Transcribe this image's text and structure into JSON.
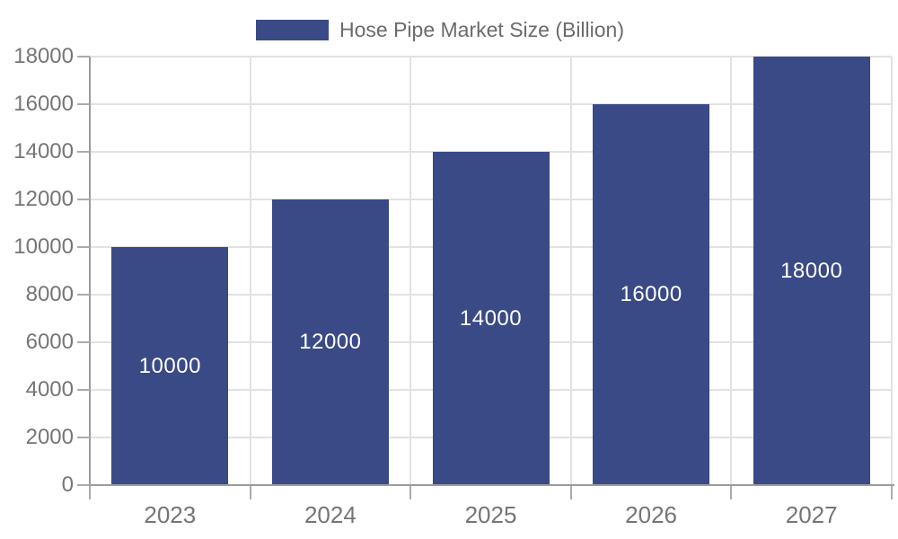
{
  "chart_data": {
    "type": "bar",
    "legend_label": "Hose Pipe Market Size (Billion)",
    "legend_position": "top",
    "categories": [
      "2023",
      "2024",
      "2025",
      "2026",
      "2027"
    ],
    "series": [
      {
        "name": "Hose Pipe Market Size (Billion)",
        "values": [
          10000,
          12000,
          14000,
          16000,
          18000
        ]
      }
    ],
    "bar_value_labels": [
      "10000",
      "12000",
      "14000",
      "16000",
      "18000"
    ],
    "yticks": [
      0,
      2000,
      4000,
      6000,
      8000,
      10000,
      12000,
      14000,
      16000,
      18000
    ],
    "ylim": [
      0,
      18000
    ],
    "xlabel": "",
    "ylabel": "",
    "grid": true,
    "colors": {
      "bar": "#3a4a86",
      "grid": "#e2e2e2",
      "axis_line": "#9c9c9c",
      "tick_mark": "#ababab",
      "axis_text": "#757575",
      "legend_text": "#6b6b6b",
      "bar_label_text": "#ffffff",
      "background": "#ffffff"
    }
  }
}
